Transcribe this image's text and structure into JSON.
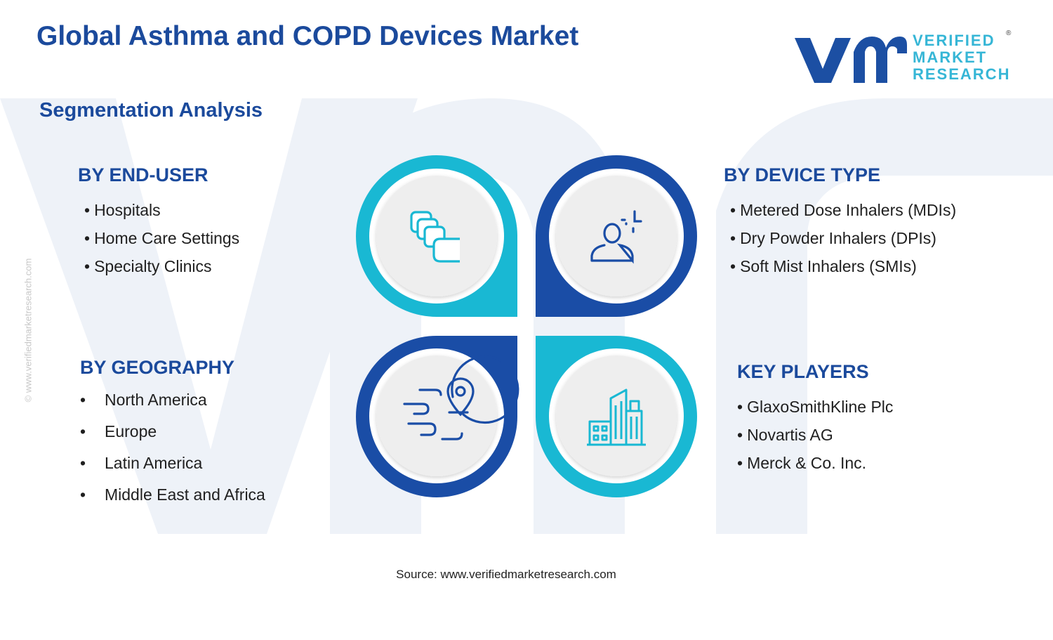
{
  "header": {
    "title": "Global Asthma and COPD Devices Market",
    "subtitle": "Segmentation Analysis"
  },
  "logo": {
    "lines": [
      "VERIFIED",
      "MARKET",
      "RESEARCH"
    ],
    "registered": "®"
  },
  "side_url": "© www.verifiedmarketresearch.com",
  "segments": {
    "end_user": {
      "heading": "BY END-USER",
      "items": [
        "Hospitals",
        "Home Care Settings",
        "Specialty Clinics"
      ]
    },
    "device_type": {
      "heading": "BY DEVICE TYPE",
      "items": [
        "Metered Dose Inhalers (MDIs)",
        "Dry Powder Inhalers (DPIs)",
        "Soft Mist Inhalers (SMIs)"
      ]
    },
    "geography": {
      "heading": "BY GEOGRAPHY",
      "items": [
        "North America",
        "Europe",
        "Latin America",
        "Middle East and Africa"
      ]
    },
    "key_players": {
      "heading": "KEY PLAYERS",
      "items": [
        "GlaxoSmithKline Plc",
        "Novartis AG",
        "Merck & Co. Inc."
      ]
    }
  },
  "bullet": "•",
  "icons": {
    "top_left": "stacked-layers-icon",
    "top_right": "user-profile-icon",
    "bottom_left": "globe-location-icon",
    "bottom_right": "city-buildings-icon"
  },
  "colors": {
    "title": "#1b4a9c",
    "dark_blue": "#1a4da6",
    "cyan": "#19b8d3",
    "inner_circle": "#eeeeee"
  },
  "source": "Source: www.verifiedmarketresearch.com"
}
